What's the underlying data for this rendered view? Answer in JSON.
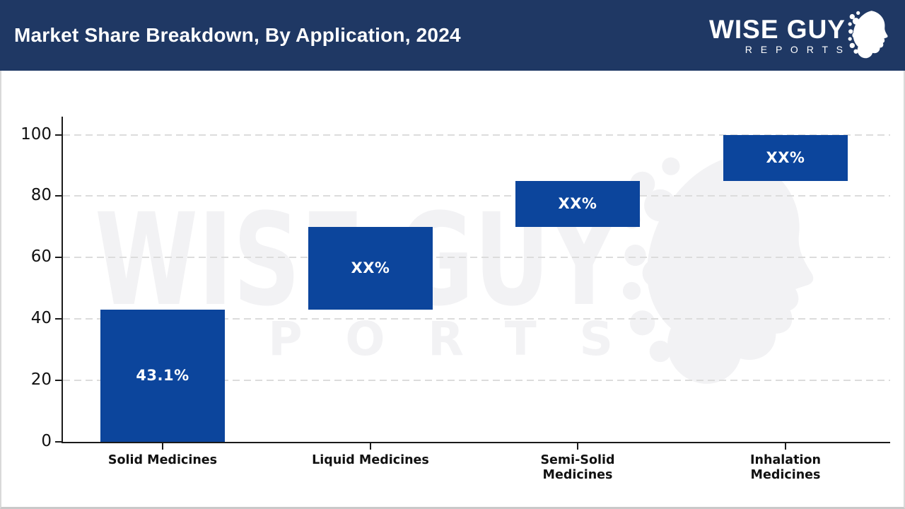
{
  "header": {
    "title": "Market Share Breakdown, By Application, 2024",
    "bg_color": "#1f3864",
    "logo": {
      "line1": "WISE GUY",
      "line2": "R E P O R T S"
    }
  },
  "watermark": {
    "line1": "WISE GUY",
    "line2": "REPORTS",
    "color": "#f2f2f4"
  },
  "chart_data": {
    "type": "bar",
    "subtype": "waterfall",
    "title": "Market Share Breakdown, By Application, 2024",
    "categories": [
      "Solid Medicines",
      "Liquid Medicines",
      "Semi-Solid Medicines",
      "Inhalation Medicines"
    ],
    "categories_lines": [
      [
        "Solid Medicines"
      ],
      [
        "Liquid Medicines"
      ],
      [
        "Semi-Solid",
        "Medicines"
      ],
      [
        "Inhalation",
        "Medicines"
      ]
    ],
    "segments": [
      [
        0,
        43.1
      ],
      [
        43.1,
        70
      ],
      [
        70,
        85
      ],
      [
        85,
        100
      ]
    ],
    "bar_labels": [
      "43.1%",
      "XX%",
      "XX%",
      "XX%"
    ],
    "yticks": [
      0,
      20,
      40,
      60,
      80,
      100
    ],
    "ylim": [
      0,
      106
    ],
    "xlabel": "",
    "ylabel": "",
    "grid": "dashed-horizontal",
    "legend": "none",
    "bar_color": "#0c459c",
    "grid_color": "#dcdcdc",
    "axis_color": "#1a1a1a"
  }
}
